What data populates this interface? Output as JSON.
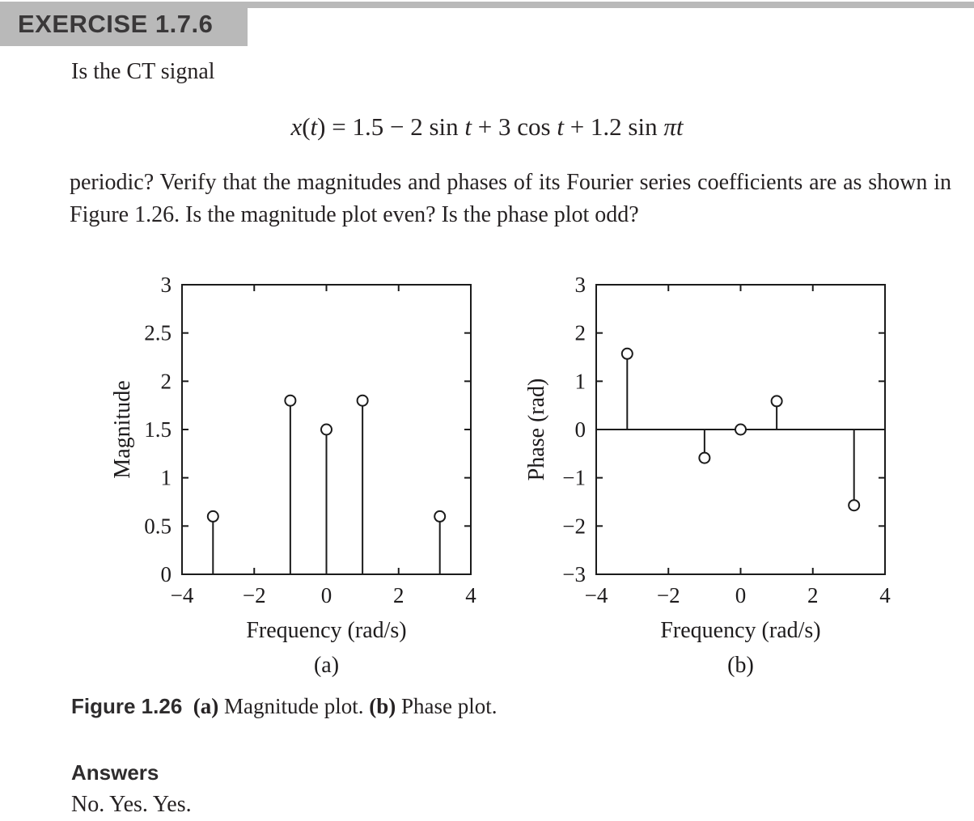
{
  "header": {
    "title": "EXERCISE 1.7.6"
  },
  "intro": "Is the CT signal",
  "equation": {
    "segments": [
      {
        "text": "x",
        "cls": "it"
      },
      {
        "text": "(",
        "cls": "rm"
      },
      {
        "text": "t",
        "cls": "it"
      },
      {
        "text": ") = 1.5 − 2 sin ",
        "cls": "rm"
      },
      {
        "text": "t",
        "cls": "it"
      },
      {
        "text": " + 3 cos ",
        "cls": "rm"
      },
      {
        "text": "t",
        "cls": "it"
      },
      {
        "text": " + 1.2 sin ",
        "cls": "rm"
      },
      {
        "text": "πt",
        "cls": "it"
      }
    ]
  },
  "question": "periodic? Verify that the magnitudes and phases of its Fourier series coefficients are as shown in Figure 1.26. Is the magnitude plot even? Is the phase plot odd?",
  "figure": {
    "caption": {
      "segments": [
        {
          "text": "Figure 1.26",
          "cls": "bs"
        },
        {
          "text": "  ",
          "cls": "rm"
        },
        {
          "text": "(a)",
          "cls": "sb"
        },
        {
          "text": " Magnitude plot. ",
          "cls": "rm"
        },
        {
          "text": "(b)",
          "cls": "sb"
        },
        {
          "text": " Phase plot.",
          "cls": "rm"
        }
      ]
    }
  },
  "answers": {
    "heading": "Answers",
    "text": "No. Yes. Yes."
  },
  "colors": {
    "header_band": "#b9b9b9",
    "ink": "#262223",
    "plot_ink": "#1b1b1b"
  },
  "chart_data": [
    {
      "type": "stem",
      "sublabel": "(a)",
      "xlabel": "Frequency (rad/s)",
      "ylabel": "Magnitude",
      "xlim": [
        -4,
        4
      ],
      "ylim": [
        0,
        3
      ],
      "xticks": [
        -4,
        -2,
        0,
        2,
        4
      ],
      "yticks": [
        0,
        0.5,
        1,
        1.5,
        2,
        2.5,
        3
      ],
      "x": [
        -3.1416,
        -1,
        0,
        1,
        3.1416
      ],
      "y": [
        0.6,
        1.8,
        1.5,
        1.8,
        0.6
      ],
      "baseline": 0,
      "zero_line": false,
      "grid": false,
      "legend": null,
      "marker": "open-circle"
    },
    {
      "type": "stem",
      "sublabel": "(b)",
      "xlabel": "Frequency (rad/s)",
      "ylabel": "Phase (rad)",
      "xlim": [
        -4,
        4
      ],
      "ylim": [
        -3,
        3
      ],
      "xticks": [
        -4,
        -2,
        0,
        2,
        4
      ],
      "yticks": [
        -3,
        -2,
        -1,
        0,
        1,
        2,
        3
      ],
      "x": [
        -3.1416,
        -1,
        0,
        1,
        3.1416
      ],
      "y": [
        1.5708,
        -0.588,
        0,
        0.588,
        -1.5708
      ],
      "baseline": 0,
      "zero_line": true,
      "grid": false,
      "legend": null,
      "marker": "open-circle"
    }
  ]
}
